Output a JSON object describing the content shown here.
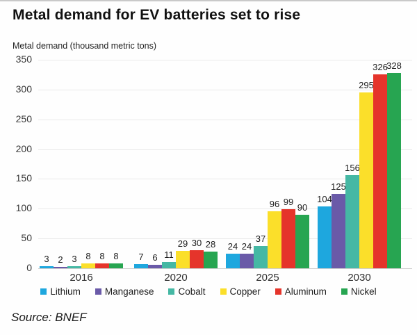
{
  "chart_data": {
    "type": "bar",
    "title": "Metal demand for EV batteries set to rise",
    "axis_title": "Metal demand (thousand metric tons)",
    "source": "Source: BNEF",
    "categories": [
      "2016",
      "2020",
      "2025",
      "2030"
    ],
    "series": [
      {
        "name": "Lithium",
        "color": "#1ea7de",
        "values": [
          3,
          7,
          24,
          104
        ]
      },
      {
        "name": "Manganese",
        "color": "#6a5aa8",
        "values": [
          2,
          6,
          24,
          125
        ]
      },
      {
        "name": "Cobalt",
        "color": "#45b8a4",
        "values": [
          3,
          11,
          37,
          156
        ]
      },
      {
        "name": "Copper",
        "color": "#fbdf2a",
        "values": [
          8,
          29,
          96,
          295
        ]
      },
      {
        "name": "Aluminum",
        "color": "#e5342b",
        "values": [
          8,
          30,
          99,
          326
        ]
      },
      {
        "name": "Nickel",
        "color": "#27a551",
        "values": [
          8,
          28,
          90,
          328
        ]
      }
    ],
    "ylim": [
      0,
      350
    ],
    "yticks": [
      0,
      50,
      100,
      150,
      200,
      250,
      300,
      350
    ],
    "grid": true,
    "legend_position": "bottom"
  }
}
